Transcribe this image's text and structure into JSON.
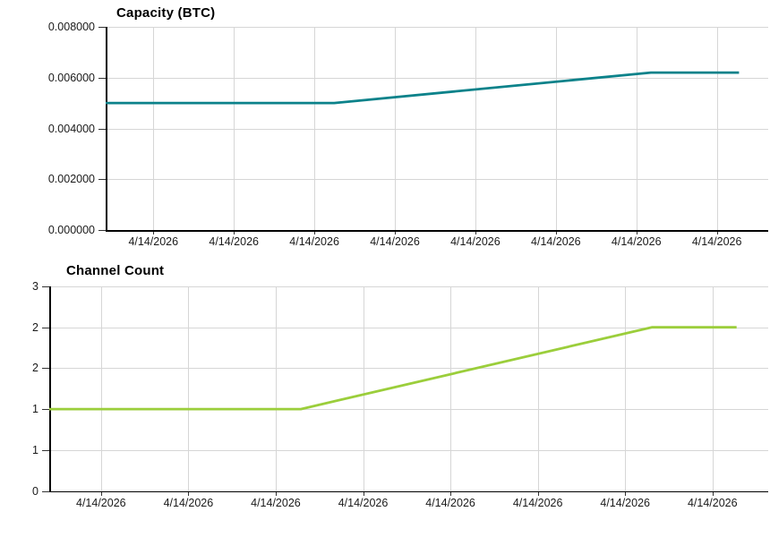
{
  "styles": {
    "background": "#ffffff",
    "grid_color": "#d6d6d6",
    "axis_color": "#000000",
    "tick_color": "#333333",
    "label_color": "#1a1a1a",
    "capacity_line_color": "#0b828a",
    "channel_line_color": "#9bce3b"
  },
  "chart_data": [
    {
      "type": "line",
      "title": "Capacity (BTC)",
      "ylabel": "",
      "xlabel": "",
      "ylim": [
        0,
        0.008
      ],
      "y_tick_values": [
        0.008,
        0.006,
        0.004,
        0.002,
        0
      ],
      "y_tick_labels": [
        "0.008000",
        "0.006000",
        "0.004000",
        "0.002000",
        "0.000000"
      ],
      "x_tick_labels": [
        "4/14/2026",
        "4/14/2026",
        "4/14/2026",
        "4/14/2026",
        "4/14/2026",
        "4/14/2026",
        "4/14/2026",
        "4/14/2026"
      ],
      "grid": true,
      "legend": "none",
      "series": [
        {
          "name": "Capacity (BTC)",
          "color": "#0b828a",
          "points": [
            {
              "x_frac": 0.0,
              "y": 0.005
            },
            {
              "x_frac": 0.345,
              "y": 0.005
            },
            {
              "x_frac": 0.823,
              "y": 0.0062
            },
            {
              "x_frac": 0.956,
              "y": 0.0062
            }
          ]
        }
      ]
    },
    {
      "type": "line",
      "title": "Channel Count",
      "ylabel": "",
      "xlabel": "",
      "ylim": [
        0,
        2.5
      ],
      "y_tick_values": [
        2.5,
        2,
        1.5,
        1,
        0.5,
        0
      ],
      "y_tick_labels": [
        "3",
        "2",
        "2",
        "1",
        "1",
        "0"
      ],
      "x_tick_labels": [
        "4/14/2026",
        "4/14/2026",
        "4/14/2026",
        "4/14/2026",
        "4/14/2026",
        "4/14/2026",
        "4/14/2026",
        "4/14/2026"
      ],
      "grid": true,
      "legend": "none",
      "series": [
        {
          "name": "Channel Count",
          "color": "#9bce3b",
          "points": [
            {
              "x_frac": 0.0,
              "y": 1
            },
            {
              "x_frac": 0.35,
              "y": 1
            },
            {
              "x_frac": 0.838,
              "y": 2
            },
            {
              "x_frac": 0.956,
              "y": 2
            }
          ]
        }
      ]
    }
  ]
}
